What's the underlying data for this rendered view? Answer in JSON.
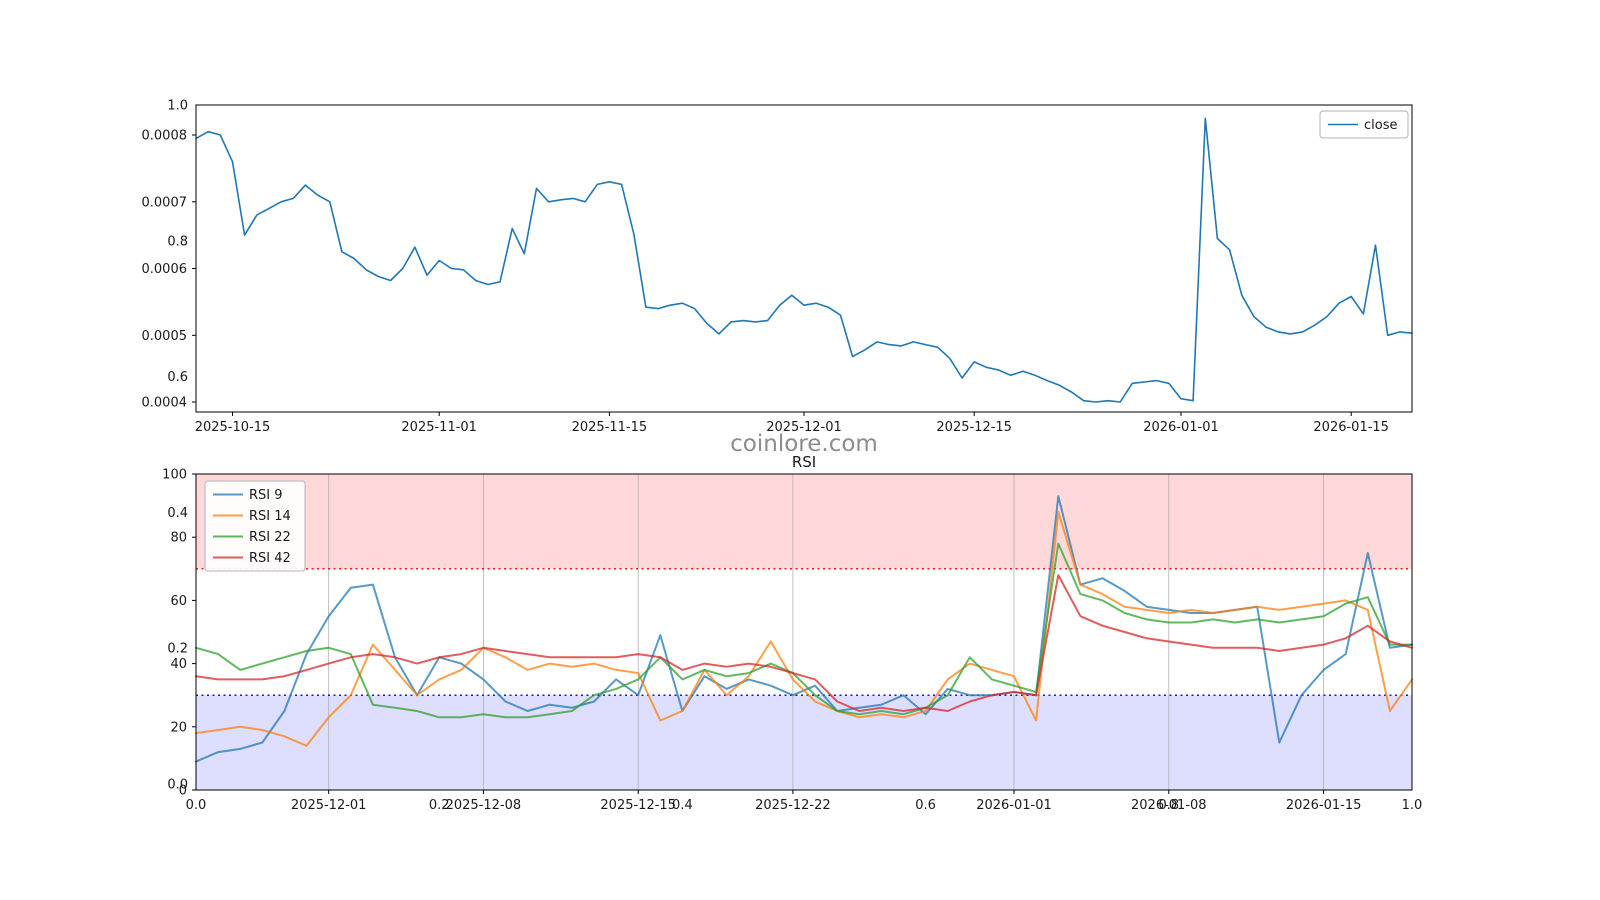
{
  "watermark": "coinlore.com",
  "overlay_axis": {
    "ytick_labels": [
      "1.0",
      "0.8",
      "0.6",
      "0.4",
      "0.2",
      "0.0"
    ],
    "xtick_labels": [
      "0.0",
      "0.2",
      "0.4",
      "0.6",
      "0.8",
      "1.0"
    ]
  },
  "chart_data": [
    {
      "type": "line",
      "title": "",
      "xlabel": "",
      "ylabel": "",
      "legend_position": "upper right",
      "ylim": [
        0.000385,
        0.000845
      ],
      "yticks": [
        0.0004,
        0.0005,
        0.0006,
        0.0007,
        0.0008
      ],
      "ytick_labels": [
        "0.0004",
        "0.0005",
        "0.0006",
        "0.0007",
        "0.0008"
      ],
      "xticks": [
        "2025-10-15",
        "2025-11-01",
        "2025-11-15",
        "2025-12-01",
        "2025-12-15",
        "2026-01-01",
        "2026-01-15"
      ],
      "x": [
        "2025-10-12",
        "2025-10-13",
        "2025-10-14",
        "2025-10-15",
        "2025-10-16",
        "2025-10-17",
        "2025-10-18",
        "2025-10-19",
        "2025-10-20",
        "2025-10-21",
        "2025-10-22",
        "2025-10-23",
        "2025-10-24",
        "2025-10-25",
        "2025-10-26",
        "2025-10-27",
        "2025-10-28",
        "2025-10-29",
        "2025-10-30",
        "2025-10-31",
        "2025-11-01",
        "2025-11-02",
        "2025-11-03",
        "2025-11-04",
        "2025-11-05",
        "2025-11-06",
        "2025-11-07",
        "2025-11-08",
        "2025-11-09",
        "2025-11-10",
        "2025-11-11",
        "2025-11-12",
        "2025-11-13",
        "2025-11-14",
        "2025-11-15",
        "2025-11-16",
        "2025-11-17",
        "2025-11-18",
        "2025-11-19",
        "2025-11-20",
        "2025-11-21",
        "2025-11-22",
        "2025-11-23",
        "2025-11-24",
        "2025-11-25",
        "2025-11-26",
        "2025-11-27",
        "2025-11-28",
        "2025-11-29",
        "2025-11-30",
        "2025-12-01",
        "2025-12-02",
        "2025-12-03",
        "2025-12-04",
        "2025-12-05",
        "2025-12-06",
        "2025-12-07",
        "2025-12-08",
        "2025-12-09",
        "2025-12-10",
        "2025-12-11",
        "2025-12-12",
        "2025-12-13",
        "2025-12-14",
        "2025-12-15",
        "2025-12-16",
        "2025-12-17",
        "2025-12-18",
        "2025-12-19",
        "2025-12-20",
        "2025-12-21",
        "2025-12-22",
        "2025-12-23",
        "2025-12-24",
        "2025-12-25",
        "2025-12-26",
        "2025-12-27",
        "2025-12-28",
        "2025-12-29",
        "2025-12-30",
        "2025-12-31",
        "2026-01-01",
        "2026-01-02",
        "2026-01-03",
        "2026-01-04",
        "2026-01-05",
        "2026-01-06",
        "2026-01-07",
        "2026-01-08",
        "2026-01-09",
        "2026-01-10",
        "2026-01-11",
        "2026-01-12",
        "2026-01-13",
        "2026-01-14",
        "2026-01-15",
        "2026-01-16",
        "2026-01-17",
        "2026-01-18",
        "2026-01-19",
        "2026-01-20"
      ],
      "series": [
        {
          "name": "close",
          "color": "#1f77b4",
          "values": [
            0.000795,
            0.000805,
            0.0008,
            0.00076,
            0.00065,
            0.00068,
            0.00069,
            0.0007,
            0.000705,
            0.000725,
            0.00071,
            0.0007,
            0.000625,
            0.000615,
            0.000598,
            0.000588,
            0.000582,
            0.0006,
            0.000632,
            0.00059,
            0.000612,
            0.0006,
            0.000598,
            0.000582,
            0.000576,
            0.00058,
            0.00066,
            0.000622,
            0.00072,
            0.0007,
            0.000703,
            0.000705,
            0.0007,
            0.000726,
            0.00073,
            0.000726,
            0.000652,
            0.000542,
            0.00054,
            0.000545,
            0.000548,
            0.00054,
            0.000518,
            0.000502,
            0.00052,
            0.000522,
            0.00052,
            0.000522,
            0.000545,
            0.00056,
            0.000545,
            0.000548,
            0.000542,
            0.00053,
            0.000468,
            0.000478,
            0.00049,
            0.000486,
            0.000484,
            0.00049,
            0.000486,
            0.000482,
            0.000465,
            0.000436,
            0.00046,
            0.000452,
            0.000448,
            0.00044,
            0.000446,
            0.00044,
            0.000432,
            0.000425,
            0.000415,
            0.000402,
            0.0004,
            0.000402,
            0.0004,
            0.000428,
            0.00043,
            0.000432,
            0.000428,
            0.000405,
            0.000402,
            0.000825,
            0.000645,
            0.000628,
            0.00056,
            0.000528,
            0.000512,
            0.000505,
            0.000502,
            0.000505,
            0.000515,
            0.000528,
            0.000548,
            0.000558,
            0.000532,
            0.000635,
            0.0005,
            0.000505,
            0.000503
          ]
        }
      ]
    },
    {
      "type": "line",
      "title": "RSI",
      "xlabel": "",
      "ylabel": "",
      "legend_position": "upper left",
      "ylim": [
        0,
        100
      ],
      "yticks": [
        0,
        20,
        40,
        60,
        80,
        100
      ],
      "ytick_labels": [
        "0",
        "20",
        "40",
        "60",
        "80",
        "100"
      ],
      "xticks": [
        "2025-12-01",
        "2025-12-08",
        "2025-12-15",
        "2025-12-22",
        "2026-01-01",
        "2026-01-08",
        "2026-01-15"
      ],
      "overbought_level": 70,
      "oversold_level": 30,
      "zones": [
        {
          "from": 70,
          "to": 100,
          "color": "#ff0000",
          "opacity": 0.15
        },
        {
          "from": 0,
          "to": 30,
          "color": "#0000ff",
          "opacity": 0.13
        }
      ],
      "hlines": [
        {
          "y": 70,
          "color": "#ff0000"
        },
        {
          "y": 30,
          "color": "#0000cc"
        }
      ],
      "x": [
        "2025-11-25",
        "2025-11-26",
        "2025-11-27",
        "2025-11-28",
        "2025-11-29",
        "2025-11-30",
        "2025-12-01",
        "2025-12-02",
        "2025-12-03",
        "2025-12-04",
        "2025-12-05",
        "2025-12-06",
        "2025-12-07",
        "2025-12-08",
        "2025-12-09",
        "2025-12-10",
        "2025-12-11",
        "2025-12-12",
        "2025-12-13",
        "2025-12-14",
        "2025-12-15",
        "2025-12-16",
        "2025-12-17",
        "2025-12-18",
        "2025-12-19",
        "2025-12-20",
        "2025-12-21",
        "2025-12-22",
        "2025-12-23",
        "2025-12-24",
        "2025-12-25",
        "2025-12-26",
        "2025-12-27",
        "2025-12-28",
        "2025-12-29",
        "2025-12-30",
        "2025-12-31",
        "2026-01-01",
        "2026-01-02",
        "2026-01-03",
        "2026-01-04",
        "2026-01-05",
        "2026-01-06",
        "2026-01-07",
        "2026-01-08",
        "2026-01-09",
        "2026-01-10",
        "2026-01-11",
        "2026-01-12",
        "2026-01-13",
        "2026-01-14",
        "2026-01-15",
        "2026-01-16",
        "2026-01-17",
        "2026-01-18",
        "2026-01-19"
      ],
      "series": [
        {
          "name": "RSI 9",
          "color": "#1f77b4",
          "values": [
            9,
            12,
            13,
            15,
            25,
            43,
            55,
            64,
            65,
            42,
            30,
            42,
            40,
            35,
            28,
            25,
            27,
            26,
            28,
            35,
            30,
            49,
            25,
            36,
            32,
            35,
            33,
            30,
            33,
            25,
            26,
            27,
            30,
            24,
            32,
            30,
            30,
            31,
            30,
            93,
            65,
            67,
            63,
            58,
            57,
            56,
            56,
            57,
            58,
            15,
            30,
            38,
            43,
            75,
            45,
            46
          ]
        },
        {
          "name": "RSI 14",
          "color": "#ff7f0e",
          "values": [
            18,
            19,
            20,
            19,
            17,
            14,
            23,
            30,
            46,
            38,
            30,
            35,
            38,
            45,
            42,
            38,
            40,
            39,
            40,
            38,
            37,
            22,
            25,
            38,
            30,
            36,
            47,
            35,
            28,
            25,
            23,
            24,
            23,
            25,
            35,
            40,
            38,
            36,
            22,
            88,
            65,
            62,
            58,
            57,
            56,
            57,
            56,
            57,
            58,
            57,
            58,
            59,
            60,
            57,
            25,
            35
          ]
        },
        {
          "name": "RSI 22",
          "color": "#2ca02c",
          "values": [
            45,
            43,
            38,
            40,
            42,
            44,
            45,
            43,
            27,
            26,
            25,
            23,
            23,
            24,
            23,
            23,
            24,
            25,
            30,
            32,
            35,
            42,
            35,
            38,
            36,
            37,
            40,
            37,
            30,
            25,
            24,
            25,
            24,
            26,
            30,
            42,
            35,
            33,
            31,
            78,
            62,
            60,
            56,
            54,
            53,
            53,
            54,
            53,
            54,
            53,
            54,
            55,
            59,
            61,
            46,
            46
          ]
        },
        {
          "name": "RSI 42",
          "color": "#d62728",
          "values": [
            36,
            35,
            35,
            35,
            36,
            38,
            40,
            42,
            43,
            42,
            40,
            42,
            43,
            45,
            44,
            43,
            42,
            42,
            42,
            42,
            43,
            42,
            38,
            40,
            39,
            40,
            39,
            37,
            35,
            28,
            25,
            26,
            25,
            26,
            25,
            28,
            30,
            31,
            30,
            68,
            55,
            52,
            50,
            48,
            47,
            46,
            45,
            45,
            45,
            44,
            45,
            46,
            48,
            52,
            47,
            45
          ]
        }
      ]
    }
  ]
}
